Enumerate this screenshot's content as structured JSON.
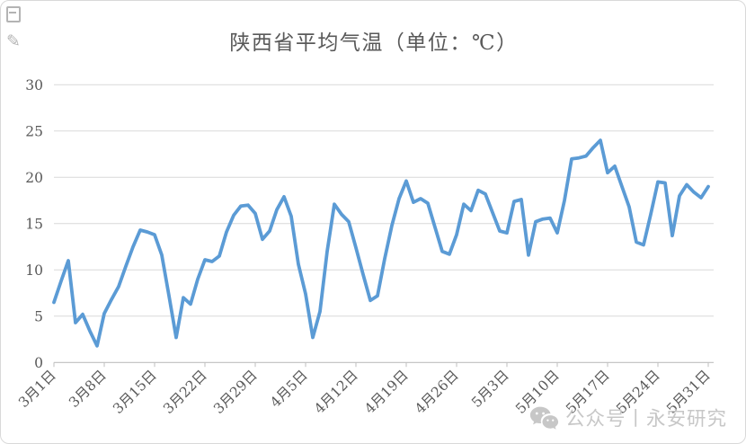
{
  "title": "陕西省平均气温（单位：℃）",
  "watermark": {
    "text": "公众号丨永安研究"
  },
  "chart_data": {
    "type": "line",
    "title": "陕西省平均气温（单位：℃）",
    "unit": "℃",
    "series_name": "陕西省平均气温",
    "line_color": "#5B9BD5",
    "grid": "horizontal",
    "legend": "none",
    "ylim": [
      0,
      30
    ],
    "y_ticks": [
      0,
      5,
      10,
      15,
      20,
      25,
      30
    ],
    "x_tick_interval_days": 7,
    "x_tick_labels": [
      "3月1日",
      "3月8日",
      "3月15日",
      "3月22日",
      "3月29日",
      "4月5日",
      "4月12日",
      "4月19日",
      "4月26日",
      "5月3日",
      "5月10日",
      "5月17日",
      "5月24日",
      "5月31日"
    ],
    "x": [
      "3月1日",
      "3月2日",
      "3月3日",
      "3月4日",
      "3月5日",
      "3月6日",
      "3月7日",
      "3月8日",
      "3月9日",
      "3月10日",
      "3月11日",
      "3月12日",
      "3月13日",
      "3月14日",
      "3月15日",
      "3月16日",
      "3月17日",
      "3月18日",
      "3月19日",
      "3月20日",
      "3月21日",
      "3月22日",
      "3月23日",
      "3月24日",
      "3月25日",
      "3月26日",
      "3月27日",
      "3月28日",
      "3月29日",
      "3月30日",
      "3月31日",
      "4月1日",
      "4月2日",
      "4月3日",
      "4月4日",
      "4月5日",
      "4月6日",
      "4月7日",
      "4月8日",
      "4月9日",
      "4月10日",
      "4月11日",
      "4月12日",
      "4月13日",
      "4月14日",
      "4月15日",
      "4月16日",
      "4月17日",
      "4月18日",
      "4月19日",
      "4月20日",
      "4月21日",
      "4月22日",
      "4月23日",
      "4月24日",
      "4月25日",
      "4月26日",
      "4月27日",
      "4月28日",
      "4月29日",
      "4月30日",
      "5月1日",
      "5月2日",
      "5月3日",
      "5月4日",
      "5月5日",
      "5月6日",
      "5月7日",
      "5月8日",
      "5月9日",
      "5月10日",
      "5月11日",
      "5月12日",
      "5月13日",
      "5月14日",
      "5月15日",
      "5月16日",
      "5月17日",
      "5月18日",
      "5月19日",
      "5月20日",
      "5月21日",
      "5月22日",
      "5月23日",
      "5月24日",
      "5月25日",
      "5月26日",
      "5月27日",
      "5月28日",
      "5月29日",
      "5月30日",
      "5月31日"
    ],
    "values": [
      6.5,
      8.8,
      11,
      4.3,
      5.2,
      3.4,
      1.8,
      5.3,
      6.8,
      8.2,
      10.4,
      12.5,
      14.3,
      14.1,
      13.8,
      11.6,
      7.2,
      2.7,
      7,
      6.3,
      9,
      11.1,
      10.9,
      11.5,
      14.1,
      15.9,
      16.9,
      17,
      16.1,
      13.3,
      14.2,
      16.5,
      17.9,
      15.8,
      10.6,
      7.4,
      2.7,
      5.5,
      12,
      17.1,
      16,
      15.2,
      12.4,
      9.5,
      6.7,
      7.2,
      11.2,
      14.8,
      17.7,
      19.6,
      17.3,
      17.7,
      17.2,
      14.6,
      12,
      11.7,
      13.8,
      17.1,
      16.4,
      18.6,
      18.2,
      16.2,
      14.2,
      14,
      17.4,
      17.6,
      11.6,
      15.2,
      15.5,
      15.6,
      14,
      17.5,
      22,
      22.1,
      22.3,
      23.2,
      24,
      20.5,
      21.2,
      19,
      16.8,
      13,
      12.7,
      16,
      19.5,
      19.4,
      13.7,
      18,
      19.2,
      18.4,
      17.8,
      19
    ]
  }
}
